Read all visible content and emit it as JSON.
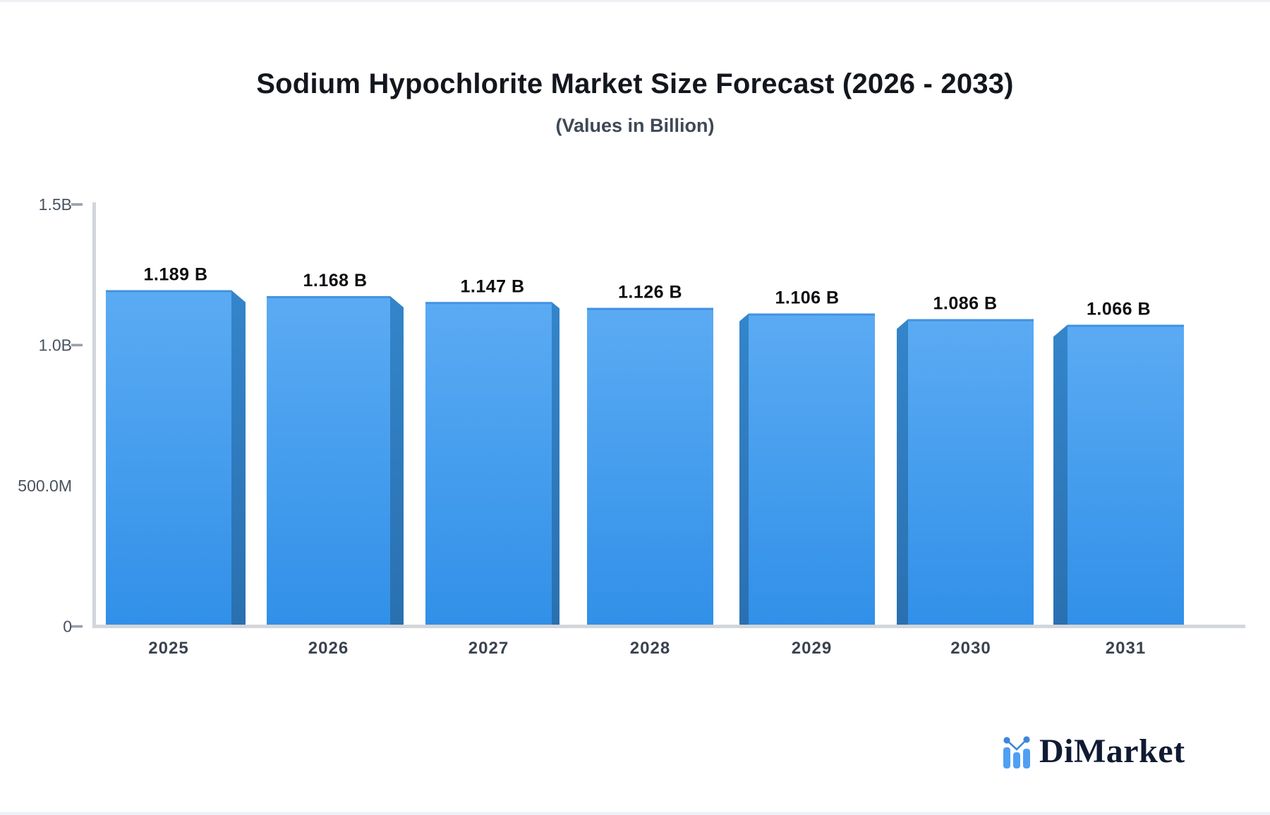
{
  "header": {
    "title": "Sodium Hypochlorite Market Size Forecast (2026 - 2033)",
    "subtitle": "(Values in Billion)"
  },
  "chart_data": {
    "type": "bar",
    "title": "Sodium Hypochlorite Market Size Forecast (2026 - 2033)",
    "subtitle": "(Values in Billion)",
    "categories": [
      "2025",
      "2026",
      "2027",
      "2028",
      "2029",
      "2030",
      "2031"
    ],
    "values": [
      1.189,
      1.168,
      1.147,
      1.126,
      1.106,
      1.086,
      1.066
    ],
    "value_labels": [
      "1.189 B",
      "1.168 B",
      "1.147 B",
      "1.126 B",
      "1.106 B",
      "1.086 B",
      "1.066 B"
    ],
    "unit": "Billion",
    "ylim": [
      0,
      1.5
    ],
    "yticks": [
      {
        "label": "1.5B",
        "value": 1.5,
        "dash": true
      },
      {
        "label": "1.0B",
        "value": 1.0,
        "dash": true
      },
      {
        "label": "500.0M",
        "value": 0.5,
        "dash": false
      },
      {
        "label": "0",
        "value": 0.0,
        "dash": true
      }
    ],
    "grid": false,
    "legend": "none",
    "colors": {
      "bar_top_gradient": "#5babf3",
      "bar_bottom_gradient": "#3190e8",
      "bar_side": "#2e79be",
      "bar_top_edge": "#4492e2",
      "axis_line": "#d3d6da",
      "tick_dash": "#98a0ab",
      "y_label": "#49525f",
      "x_label": "#3a434f",
      "value_label": "#0b0d10"
    }
  },
  "logo": {
    "text": "DiMarket",
    "icon": "bar-line-chart-icon",
    "icon_color": "#4f9ff2",
    "accent_color": "#3c86dd",
    "text_color": "#101b33"
  }
}
